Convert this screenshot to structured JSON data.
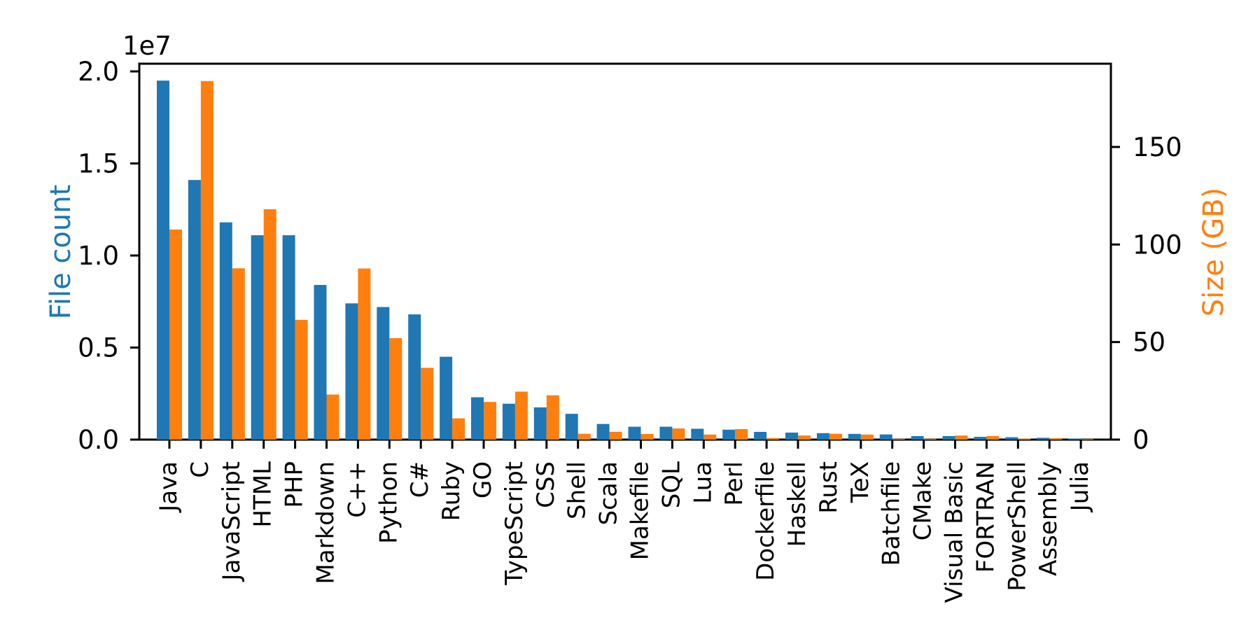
{
  "figure": {
    "background": "#ffffff",
    "left_axis": {
      "label": "File count",
      "color": "#1f77b4",
      "offset_text": "1e7",
      "tick_labels": [
        "0.0",
        "0.5",
        "1.0",
        "1.5",
        "2.0"
      ],
      "tick_values": [
        0,
        0.5,
        1.0,
        1.5,
        2.0
      ],
      "range_1e7": [
        0,
        2.042
      ]
    },
    "right_axis": {
      "label": "Size (GB)",
      "color": "#ff7f0e",
      "tick_labels": [
        "0",
        "50",
        "100",
        "150"
      ],
      "tick_values": [
        0,
        50,
        100,
        150
      ],
      "range_gb": [
        0,
        192.6
      ]
    },
    "spine_color": "#000000",
    "tick_color": "#000000",
    "x_tick_label_color": "#000000"
  },
  "chart_data": {
    "type": "bar",
    "title": "",
    "xlabel": "",
    "ylabel": "File count",
    "y2label": "Size (GB)",
    "grid": false,
    "legend": "none",
    "bar_grouping": "paired dual-axis grouped bars, blue=file count (left 1e7 axis), orange=size GB (right axis)",
    "categories": [
      "Java",
      "C",
      "JavaScript",
      "HTML",
      "PHP",
      "Markdown",
      "C++",
      "Python",
      "C#",
      "Ruby",
      "GO",
      "TypeScript",
      "CSS",
      "Shell",
      "Scala",
      "Makefile",
      "SQL",
      "Lua",
      "Perl",
      "Dockerfile",
      "Haskell",
      "Rust",
      "TeX",
      "Batchfile",
      "CMake",
      "Visual Basic",
      "FORTRAN",
      "PowerShell",
      "Assembly",
      "Julia"
    ],
    "series": [
      {
        "name": "File count",
        "axis": "left",
        "color": "#1f77b4",
        "unit": "files, in units of 1e7 (matches left axis)",
        "values": [
          1.95,
          1.41,
          1.18,
          1.11,
          1.11,
          0.84,
          0.74,
          0.72,
          0.68,
          0.45,
          0.23,
          0.195,
          0.175,
          0.14,
          0.085,
          0.07,
          0.07,
          0.059,
          0.054,
          0.042,
          0.038,
          0.035,
          0.031,
          0.028,
          0.019,
          0.019,
          0.015,
          0.013,
          0.01,
          0.006
        ]
      },
      {
        "name": "Size (GB)",
        "axis": "right",
        "color": "#ff7f0e",
        "unit": "GB (matches right axis)",
        "values": [
          107.7,
          183.8,
          87.8,
          118.1,
          61.4,
          23.1,
          87.7,
          52.0,
          36.8,
          10.9,
          19.3,
          24.6,
          22.7,
          3.0,
          4.0,
          2.9,
          5.7,
          2.6,
          5.4,
          0.8,
          2.1,
          3.0,
          2.6,
          0.4,
          0.4,
          2.1,
          1.8,
          0.5,
          0.7,
          0.3
        ]
      }
    ],
    "ylim_1e7": [
      0,
      2.042
    ],
    "y2lim_gb": [
      0,
      192.6
    ]
  }
}
